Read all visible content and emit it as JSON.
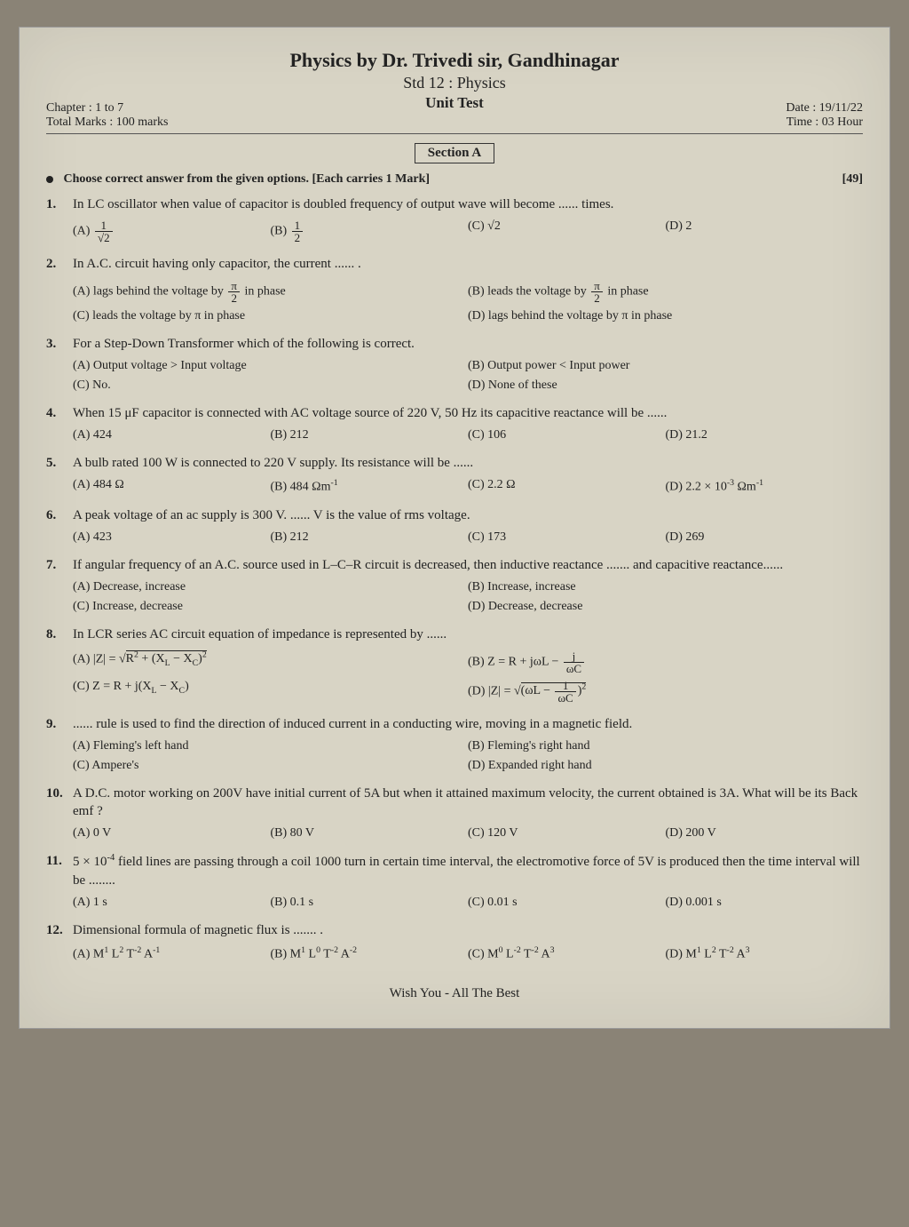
{
  "header": {
    "title": "Physics by Dr. Trivedi sir, Gandhinagar",
    "subtitle": "Std 12 : Physics",
    "test_label": "Unit Test",
    "chapter": "Chapter : 1 to 7",
    "total_marks": "Total Marks : 100 marks",
    "date": "Date : 19/11/22",
    "time": "Time : 03 Hour",
    "section": "Section A",
    "instruction": "Choose correct answer from the given options. [Each carries 1 Mark]",
    "section_marks": "[49]"
  },
  "questions": [
    {
      "num": "1.",
      "text": "In LC oscillator when value of capacitor is doubled frequency of output wave will become ...... times.",
      "layout": "four",
      "options": {
        "A": "<span class='frac'><span class='top'>1</span><span class='bot'>√2</span></span>",
        "B": "<span class='frac'><span class='top'>1</span><span class='bot'>2</span></span>",
        "C": "√2",
        "D": "2"
      }
    },
    {
      "num": "2.",
      "text": "In A.C. circuit having only capacitor, the current ...... .",
      "layout": "two",
      "options": {
        "A": "lags behind the voltage by <span class='frac'><span class='top'>π</span><span class='bot'>2</span></span> in phase",
        "B": "leads the voltage by <span class='frac'><span class='top'>π</span><span class='bot'>2</span></span> in phase",
        "C": "leads the voltage by π in phase",
        "D": "lags behind the voltage by π in phase"
      }
    },
    {
      "num": "3.",
      "text": "For a Step-Down Transformer which of the following is correct.",
      "layout": "two",
      "options": {
        "A": "Output voltage > Input voltage",
        "B": "Output power < Input power",
        "C": "No.",
        "D": "None of these"
      }
    },
    {
      "num": "4.",
      "text": "When 15 μF capacitor is connected with AC voltage source of 220 V, 50 Hz its capacitive reactance will be ......",
      "layout": "four",
      "options": {
        "A": "424",
        "B": "212",
        "C": "106",
        "D": "21.2"
      }
    },
    {
      "num": "5.",
      "text": "A bulb rated 100 W is connected to 220 V supply. Its resistance will be ......",
      "layout": "four",
      "options": {
        "A": "484 Ω",
        "B": "484 Ωm<sup>-1</sup>",
        "C": "2.2 Ω",
        "D": "2.2 × 10<sup>-3</sup> Ωm<sup>-1</sup>"
      }
    },
    {
      "num": "6.",
      "text": "A peak voltage of an ac supply is 300 V. ...... V is the value of rms voltage.",
      "layout": "four",
      "options": {
        "A": "423",
        "B": "212",
        "C": "173",
        "D": "269"
      }
    },
    {
      "num": "7.",
      "text": "If angular frequency of an A.C. source used in L–C–R circuit is decreased, then inductive reactance ....... and capacitive reactance......",
      "layout": "two",
      "options": {
        "A": "Decrease, increase",
        "B": "Increase, increase",
        "C": "Increase, decrease",
        "D": "Decrease, decrease"
      }
    },
    {
      "num": "8.",
      "text": "In LCR series AC circuit equation of impedance is represented by ......",
      "layout": "two",
      "options": {
        "A": "|Z| = √<span style='border-top:1px solid #222;padding-top:1px;'>R<sup>2</sup> + (X<sub>L</sub> − X<sub>C</sub>)<sup>2</sup></span>",
        "B": "Z = R + jωL − <span class='frac'><span class='top'>j</span><span class='bot'>ωC</span></span>",
        "C": "Z = R + j(X<sub>L</sub> − X<sub>C</sub>)",
        "D": "|Z| = √<span style='border-top:1px solid #222;padding-top:1px;'>(ωL − <span class='frac'><span class='top'>1</span><span class='bot'>ωC</span></span>)<sup>2</sup></span>"
      }
    },
    {
      "num": "9.",
      "text": "...... rule is used to find the direction of induced current in a conducting wire, moving in a magnetic field.",
      "layout": "two",
      "options": {
        "A": "Fleming's left hand",
        "B": "Fleming's right hand",
        "C": "Ampere's",
        "D": "Expanded right hand"
      }
    },
    {
      "num": "10.",
      "text": "A D.C. motor working on 200V have initial current of 5A but when it attained maximum velocity, the current obtained is 3A. What will be its Back emf ?",
      "layout": "four",
      "options": {
        "A": "0 V",
        "B": "80 V",
        "C": "120 V",
        "D": "200 V"
      }
    },
    {
      "num": "11.",
      "text": "5 × 10<sup>-4</sup> field lines are passing through a coil 1000 turn in certain time interval, the electromotive force of 5V is produced then the time interval will be ........",
      "layout": "four",
      "options": {
        "A": "1 s",
        "B": "0.1 s",
        "C": "0.01 s",
        "D": "0.001 s"
      }
    },
    {
      "num": "12.",
      "text": "Dimensional formula of magnetic flux is ....... .",
      "layout": "four",
      "options": {
        "A": "M<sup>1</sup> L<sup>2</sup> T<sup>-2</sup> A<sup>-1</sup>",
        "B": "M<sup>1</sup> L<sup>0</sup> T<sup>-2</sup> A<sup>-2</sup>",
        "C": "M<sup>0</sup> L<sup>-2</sup> T<sup>-2</sup> A<sup>3</sup>",
        "D": "M<sup>1</sup> L<sup>2</sup> T<sup>-2</sup> A<sup>3</sup>"
      }
    }
  ],
  "footer": "Wish You - All The Best"
}
